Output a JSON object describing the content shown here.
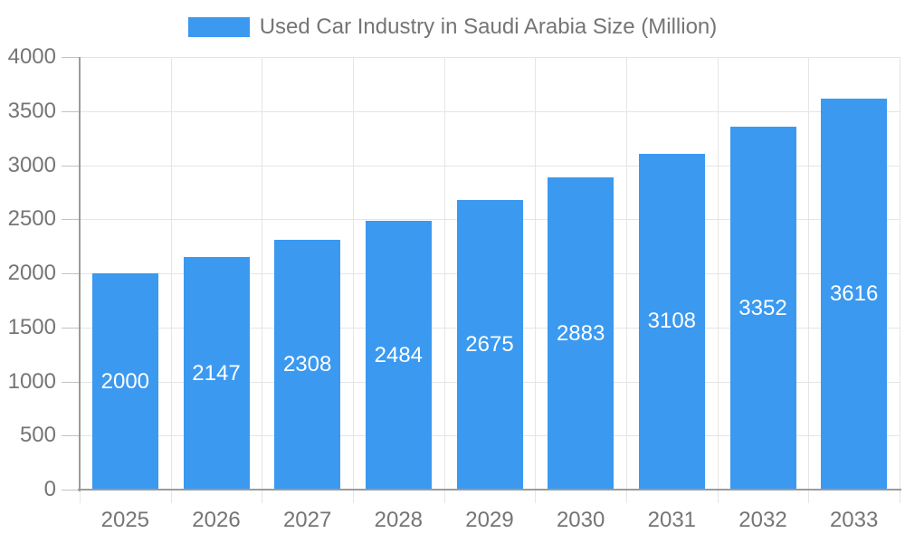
{
  "chart_data": {
    "type": "bar",
    "title": "Used Car Industry in Saudi Arabia Size (Million)",
    "categories": [
      "2025",
      "2026",
      "2027",
      "2028",
      "2029",
      "2030",
      "2031",
      "2032",
      "2033"
    ],
    "values": [
      2000,
      2147,
      2308,
      2484,
      2675,
      2883,
      3108,
      3352,
      3616
    ],
    "series": [
      {
        "name": "Used Car Industry in Saudi Arabia Size (Million)",
        "values": [
          2000,
          2147,
          2308,
          2484,
          2675,
          2883,
          3108,
          3352,
          3616
        ]
      }
    ],
    "xlabel": "",
    "ylabel": "",
    "ylim": [
      0,
      4000
    ],
    "ytick_step": 500,
    "yticks": [
      0,
      500,
      1000,
      1500,
      2000,
      2500,
      3000,
      3500,
      4000
    ],
    "grid": true,
    "legend_position": "top",
    "value_labels": "inside-center",
    "colors": {
      "bar": "#3B99F0",
      "value_label": "#FFFFFF",
      "axis_text": "#757575",
      "gridline": "#E5E5E5",
      "tick": "#C2C2C2",
      "axis_line": "#9B9B9B",
      "background": "#FFFFFF"
    }
  }
}
